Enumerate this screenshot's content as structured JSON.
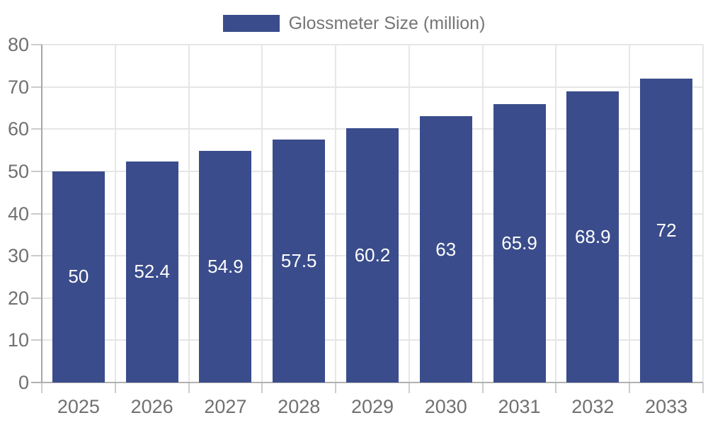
{
  "colors": {
    "background": "#ffffff",
    "bar": "#3a4c8b",
    "grid": "#e6e6e6",
    "tick": "#cccccc",
    "axis": "#a6a6a6",
    "axis_bottom": "#b0b0b0",
    "axis_label": "#707070",
    "legend_text": "#757575",
    "bar_label": "#ffffff"
  },
  "chart_data": {
    "type": "bar",
    "legend_label": "Glossmeter Size (million)",
    "categories": [
      "2025",
      "2026",
      "2027",
      "2028",
      "2029",
      "2030",
      "2031",
      "2032",
      "2033"
    ],
    "values": [
      50,
      52.4,
      54.9,
      57.5,
      60.2,
      63,
      65.9,
      68.9,
      72
    ],
    "xlabel": "",
    "ylabel": "",
    "ylim": [
      0,
      80
    ],
    "yticks": [
      0,
      10,
      20,
      30,
      40,
      50,
      60,
      70,
      80
    ],
    "grid": true,
    "legend_position": "top"
  }
}
